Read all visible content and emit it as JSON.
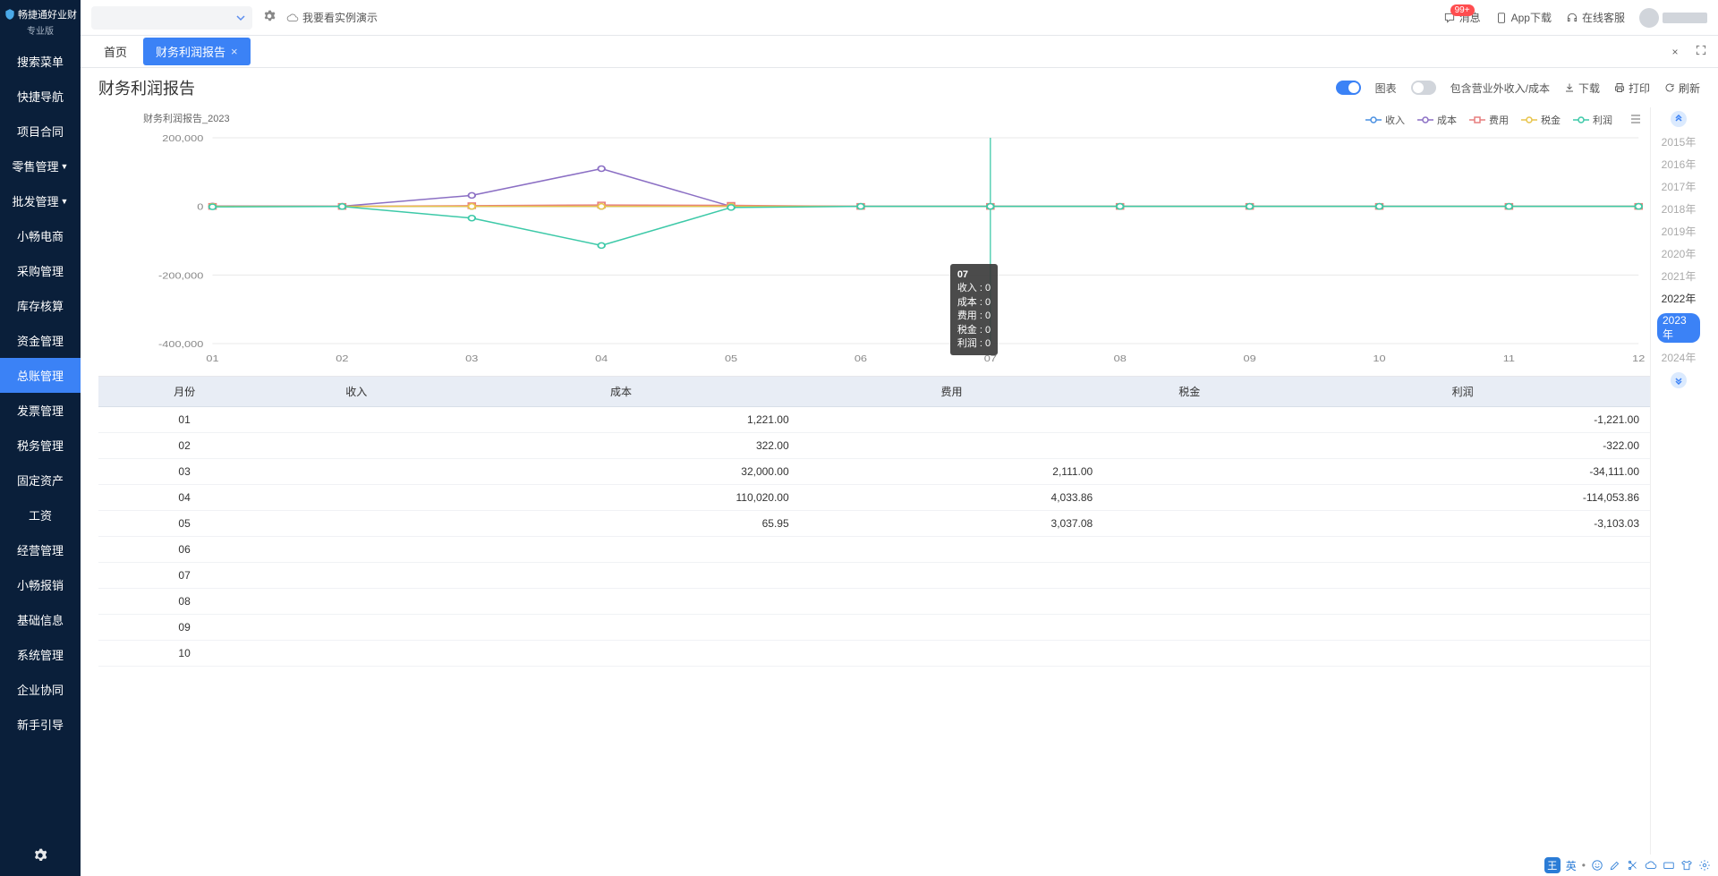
{
  "brand": {
    "name": "畅捷通好业财",
    "edition": "专业版"
  },
  "sidebar": {
    "items": [
      {
        "label": "搜索菜单",
        "expand": false
      },
      {
        "label": "快捷导航",
        "expand": false
      },
      {
        "label": "项目合同",
        "expand": false
      },
      {
        "label": "零售管理",
        "expand": true
      },
      {
        "label": "批发管理",
        "expand": true
      },
      {
        "label": "小畅电商",
        "expand": false
      },
      {
        "label": "采购管理",
        "expand": false
      },
      {
        "label": "库存核算",
        "expand": false
      },
      {
        "label": "资金管理",
        "expand": false
      },
      {
        "label": "总账管理",
        "expand": false,
        "active": true
      },
      {
        "label": "发票管理",
        "expand": false
      },
      {
        "label": "税务管理",
        "expand": false
      },
      {
        "label": "固定资产",
        "expand": false
      },
      {
        "label": "工资",
        "expand": false
      },
      {
        "label": "经营管理",
        "expand": false
      },
      {
        "label": "小畅报销",
        "expand": false
      },
      {
        "label": "基础信息",
        "expand": false
      },
      {
        "label": "系统管理",
        "expand": false
      },
      {
        "label": "企业协同",
        "expand": false
      },
      {
        "label": "新手引导",
        "expand": false
      }
    ]
  },
  "topbar": {
    "demo": "我要看实例演示",
    "message": "消息",
    "badge": "99+",
    "download": "App下载",
    "service": "在线客服"
  },
  "tabs": {
    "home": "首页",
    "active": "财务利润报告"
  },
  "page": {
    "title": "财务利润报告",
    "chart_label": "图表",
    "extra_label": "包含营业外收入/成本",
    "download": "下载",
    "print": "打印",
    "refresh": "刷新"
  },
  "chart": {
    "title": "财务利润报告_2023",
    "series": [
      {
        "name": "收入",
        "color": "#4a90e2",
        "marker": "circle"
      },
      {
        "name": "成本",
        "color": "#8b6fc4",
        "marker": "circle"
      },
      {
        "name": "费用",
        "color": "#e77e7e",
        "marker": "square"
      },
      {
        "name": "税金",
        "color": "#e8c44a",
        "marker": "circle"
      },
      {
        "name": "利润",
        "color": "#3dc9a8",
        "marker": "circle"
      }
    ],
    "x_labels": [
      "01",
      "02",
      "03",
      "04",
      "05",
      "06",
      "07",
      "08",
      "09",
      "10",
      "11",
      "12"
    ],
    "y_ticks": [
      -400000,
      -200000,
      0,
      200000
    ],
    "ylim": [
      -400000,
      200000
    ],
    "data": {
      "收入": [
        0,
        0,
        0,
        0,
        0,
        0,
        0,
        0,
        0,
        0,
        0,
        0
      ],
      "成本": [
        1221,
        322,
        32000,
        110020,
        65.95,
        0,
        0,
        0,
        0,
        0,
        0,
        0
      ],
      "费用": [
        0,
        0,
        2111,
        4033.86,
        3037.08,
        0,
        0,
        0,
        0,
        0,
        0,
        0
      ],
      "税金": [
        0,
        0,
        0,
        0,
        0,
        0,
        0,
        0,
        0,
        0,
        0,
        0
      ],
      "利润": [
        -1221,
        -322,
        -34111,
        -114053.86,
        -3103.03,
        0,
        0,
        0,
        0,
        0,
        0,
        0
      ]
    },
    "tooltip_index": 6,
    "tooltip": {
      "title": "07",
      "rows": [
        "收入 : 0",
        "成本 : 0",
        "费用 : 0",
        "税金 : 0",
        "利润 : 0"
      ]
    },
    "grid_color": "#e8e8e8",
    "axis_color": "#ccc",
    "hover_line_color": "#3dc9a8"
  },
  "table": {
    "columns": [
      "月份",
      "收入",
      "成本",
      "费用",
      "税金",
      "利润"
    ],
    "rows": [
      [
        "01",
        "",
        "1,221.00",
        "",
        "",
        "-1,221.00"
      ],
      [
        "02",
        "",
        "322.00",
        "",
        "",
        "-322.00"
      ],
      [
        "03",
        "",
        "32,000.00",
        "2,111.00",
        "",
        "-34,111.00"
      ],
      [
        "04",
        "",
        "110,020.00",
        "4,033.86",
        "",
        "-114,053.86"
      ],
      [
        "05",
        "",
        "65.95",
        "3,037.08",
        "",
        "-3,103.03"
      ],
      [
        "06",
        "",
        "",
        "",
        "",
        ""
      ],
      [
        "07",
        "",
        "",
        "",
        "",
        ""
      ],
      [
        "08",
        "",
        "",
        "",
        "",
        ""
      ],
      [
        "09",
        "",
        "",
        "",
        "",
        ""
      ],
      [
        "10",
        "",
        "",
        "",
        "",
        ""
      ]
    ]
  },
  "years": {
    "list": [
      "2015年",
      "2016年",
      "2017年",
      "2018年",
      "2019年",
      "2020年",
      "2021年",
      "2022年",
      "2023年",
      "2024年"
    ],
    "dark": "2022年",
    "active": "2023年"
  },
  "taskbar": {
    "ime": "英"
  }
}
